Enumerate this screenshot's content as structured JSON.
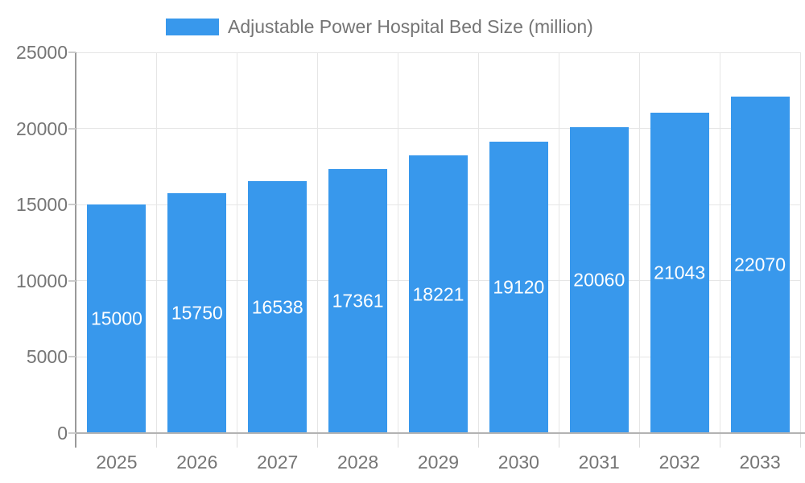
{
  "legend": {
    "label": "Adjustable Power Hospital Bed Size (million)"
  },
  "colors": {
    "background": "#FFFFFF",
    "bar": "#3898EC",
    "grid": "#E6E6E6",
    "x_axis_line": "#B3B3B3",
    "y_axis_line": "#999999",
    "y_tick": "#CCCCCC",
    "x_tick": "#DDDDDD",
    "text": "#757575",
    "bar_label": "#FFFFFF"
  },
  "chart_data": {
    "type": "bar",
    "title": "Adjustable Power Hospital Bed Size (million)",
    "categories": [
      "2025",
      "2026",
      "2027",
      "2028",
      "2029",
      "2030",
      "2031",
      "2032",
      "2033"
    ],
    "series": [
      {
        "name": "Adjustable Power Hospital Bed Size (million)",
        "values": [
          15000,
          15750,
          16538,
          17361,
          18221,
          19120,
          20060,
          21043,
          22070
        ]
      }
    ],
    "values": [
      15000,
      15750,
      16538,
      17361,
      18221,
      19120,
      20060,
      21043,
      22070
    ],
    "data_labels": [
      "15000",
      "15750",
      "16538",
      "17361",
      "18221",
      "19120",
      "20060",
      "21043",
      "22070"
    ],
    "xlabel": "",
    "ylabel": "",
    "ylim": [
      0,
      25000
    ],
    "yticks": [
      0,
      5000,
      10000,
      15000,
      20000,
      25000
    ],
    "grid": true,
    "legend_position": "top"
  }
}
